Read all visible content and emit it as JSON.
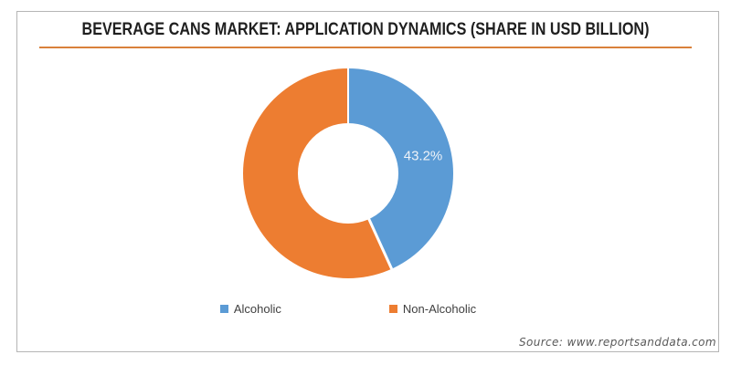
{
  "title": "BEVERAGE CANS MARKET: APPLICATION DYNAMICS (SHARE IN USD BILLION)",
  "source": "Source: www.reportsanddata.com",
  "colors": {
    "accent_line": "#D9813B",
    "frame_border": "#B5B5B5",
    "title_text": "#1F1F1F",
    "legend_text": "#3F3F3F",
    "slice_label_text": "#EEF2F8",
    "source_text": "#595959",
    "alcoholic": "#5B9BD5",
    "non_alcoholic": "#ED7D31"
  },
  "chart_data": {
    "type": "pie",
    "subtype": "donut",
    "title": "BEVERAGE CANS MARKET: APPLICATION DYNAMICS (SHARE IN USD BILLION)",
    "categories": [
      "Alcoholic",
      "Non-Alcoholic"
    ],
    "values": [
      43.2,
      56.8
    ],
    "colors": [
      "#5B9BD5",
      "#ED7D31"
    ],
    "data_labels": [
      "43.2%",
      ""
    ],
    "start_angle_deg": 0,
    "direction": "clockwise",
    "donut_hole_ratio": 0.48,
    "legend_position": "bottom",
    "slice_gap_deg": 1
  },
  "legend": {
    "items": [
      {
        "label": "Alcoholic",
        "color": "#5B9BD5"
      },
      {
        "label": "Non-Alcoholic",
        "color": "#ED7D31"
      }
    ]
  }
}
